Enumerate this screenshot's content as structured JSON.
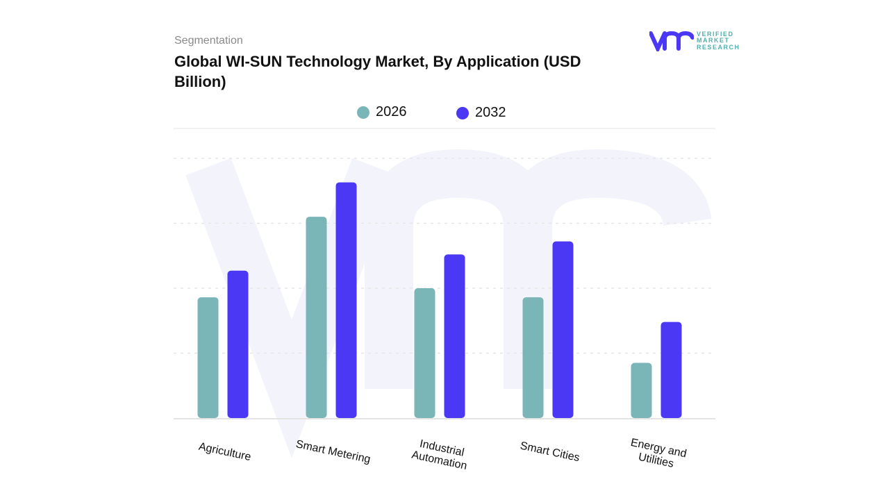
{
  "header": {
    "segment_label": "Segmentation",
    "title": "Global WI-SUN Technology Market, By Application (USD Billion)"
  },
  "logo": {
    "text": [
      "VERIFIED",
      "MARKET",
      "RESEARCH"
    ],
    "mark": "vmr"
  },
  "chart_data": {
    "type": "bar",
    "title": "Global WI-SUN Technology Market, By Application (USD Billion)",
    "categories": [
      "Agriculture",
      "Smart Metering",
      "Industrial Automation",
      "Smart Cities",
      "Energy and Utilities"
    ],
    "series": [
      {
        "name": "2026",
        "color": "#7ab5b8",
        "values": [
          1.86,
          3.1,
          2.0,
          1.86,
          0.85
        ]
      },
      {
        "name": "2032",
        "color": "#4b38f5",
        "values": [
          2.27,
          3.63,
          2.52,
          2.72,
          1.48
        ]
      }
    ],
    "ylim": [
      0,
      4
    ],
    "grid": true,
    "legend": "top-center",
    "xlabel": "",
    "ylabel": ""
  }
}
